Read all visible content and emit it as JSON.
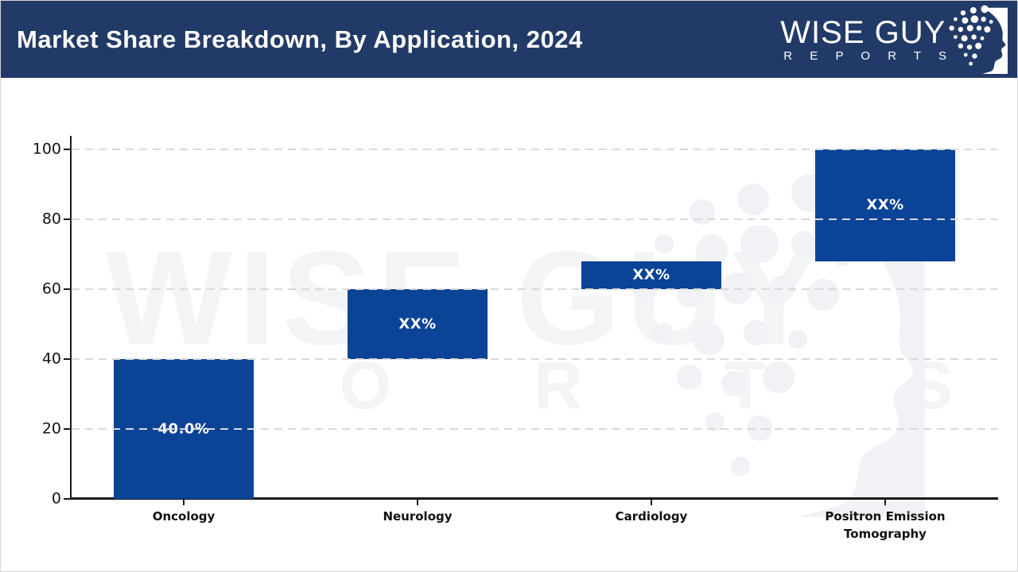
{
  "header": {
    "title": "Market Share Breakdown, By Application, 2024",
    "logo": {
      "line1": "WISE GUY",
      "line2": "R E P O R T S"
    }
  },
  "watermark": {
    "line1": "WISE GUY",
    "line2": "P O R T S"
  },
  "colors": {
    "header_bg": "#223a67",
    "bar_blue": "#0b4397",
    "grid_gray": "#d9d9d9",
    "axis_dark": "#1a1a1a",
    "watermark_gray": "#f3f4f6"
  },
  "chart_data": {
    "type": "bar",
    "subtype": "waterfall",
    "title": "Market Share Breakdown, By Application, 2024",
    "xlabel": "",
    "ylabel": "",
    "categories": [
      "Oncology",
      "Neurology",
      "Cardiology",
      "Positron Emission\nTomography"
    ],
    "segments": [
      {
        "category": "Oncology",
        "start": 0,
        "end": 40,
        "label": "40.0%"
      },
      {
        "category": "Neurology",
        "start": 40,
        "end": 60,
        "label": "XX%"
      },
      {
        "category": "Cardiology",
        "start": 60,
        "end": 68,
        "label": "XX%"
      },
      {
        "category": "Positron Emission Tomography",
        "start": 68,
        "end": 100,
        "label": "XX%"
      }
    ],
    "yticks": [
      0,
      20,
      40,
      60,
      80,
      100
    ],
    "ylim": [
      0,
      104
    ],
    "grid": {
      "axis": "y",
      "style": "dashed",
      "on": true
    },
    "legend": "none",
    "bar_color": "#0b4397",
    "bar_label_color": "#ffffff"
  }
}
